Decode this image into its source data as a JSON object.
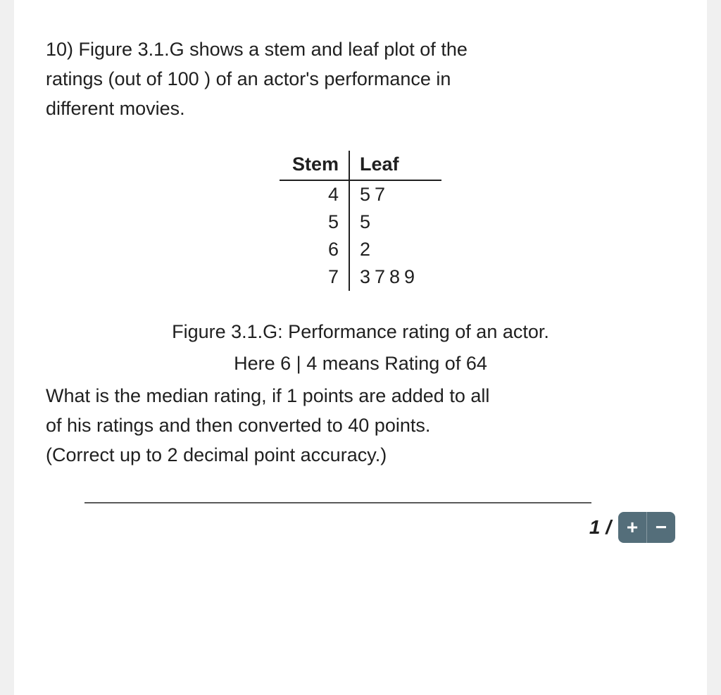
{
  "question": {
    "number": "10)",
    "prompt_line1": "Figure 3.1.G shows a stem and leaf plot of the",
    "prompt_line2": "ratings (out of 100 ) of an actor's performance in",
    "prompt_line3": "different movies."
  },
  "stem_leaf": {
    "header_stem": "Stem",
    "header_leaf": "Leaf",
    "rows": [
      {
        "stem": "4",
        "leaf": "57"
      },
      {
        "stem": "5",
        "leaf": "5"
      },
      {
        "stem": "6",
        "leaf": "2"
      },
      {
        "stem": "7",
        "leaf": "3789"
      }
    ]
  },
  "caption": {
    "line1": "Figure 3.1.G: Performance rating of an actor.",
    "line2": "Here 6 | 4 means Rating of 64"
  },
  "followup": {
    "line1": "What is the median rating, if 1 points are added to all",
    "line2": "of his ratings and then converted to 40 points.",
    "line3": "(Correct up to 2 decimal point accuracy.)"
  },
  "footer": {
    "page_indicator": "1 /",
    "plus": "+",
    "minus": "−"
  },
  "colors": {
    "card_bg": "#ffffff",
    "body_bg": "#f0f0f0",
    "text": "#202020",
    "rule": "#5a5a5a",
    "stepper_bg": "#546e7a",
    "stepper_fg": "#ffffff"
  },
  "typography": {
    "body_fontsize": 27,
    "line_height": 1.55,
    "page_indicator_fontsize": 28
  }
}
